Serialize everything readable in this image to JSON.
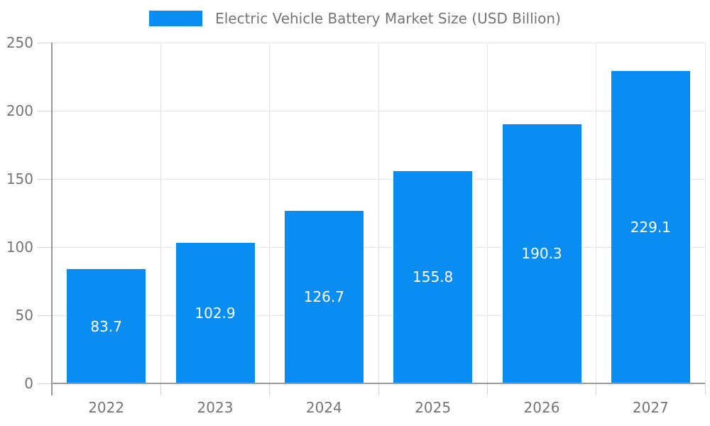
{
  "legend": {
    "label": "Electric Vehicle Battery Market Size (USD Billion)",
    "swatch_color": "#0a8df2"
  },
  "chart_data": {
    "type": "bar",
    "title": "Electric Vehicle Battery Market Size (USD Billion)",
    "categories": [
      "2022",
      "2023",
      "2024",
      "2025",
      "2026",
      "2027"
    ],
    "values": [
      83.7,
      102.9,
      126.7,
      155.8,
      190.3,
      229.1
    ],
    "value_labels": [
      "83.7",
      "102.9",
      "126.7",
      "155.8",
      "190.3",
      "229.1"
    ],
    "xlabel": "",
    "ylabel": "",
    "ylim": [
      0,
      250
    ],
    "yticks": [
      0,
      50,
      100,
      150,
      200,
      250
    ],
    "grid": true,
    "legend_position": "top-center",
    "bar_color": "#0a8df2",
    "value_label_color": "#ffffff",
    "axis_text_color": "#757575",
    "gridline_color": "#e6e6e6",
    "axis_line_color": "#9a9a9a"
  }
}
